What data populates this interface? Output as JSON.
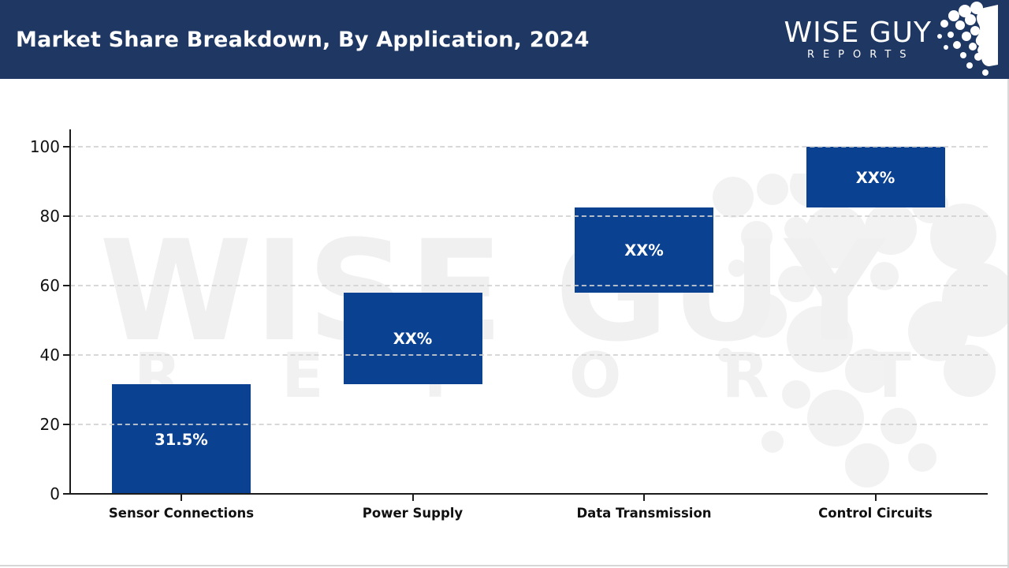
{
  "header": {
    "title": "Market Share Breakdown, By Application, 2024",
    "bg_color": "#1f3763",
    "logo": {
      "line1": "WISE GUY",
      "line2": "REPORTS"
    }
  },
  "watermark": {
    "line1": "WISE GUY",
    "line2": "R E P O R T S"
  },
  "chart_data": {
    "type": "bar",
    "subtype": "waterfall",
    "title": "Market Share Breakdown, By Application, 2024",
    "categories": [
      "Sensor Connections",
      "Power Supply",
      "Data Transmission",
      "Control Circuits"
    ],
    "bars": [
      {
        "category": "Sensor Connections",
        "start": 0,
        "end": 31.5,
        "label": "31.5%"
      },
      {
        "category": "Power Supply",
        "start": 31.5,
        "end": 58,
        "label": "XX%"
      },
      {
        "category": "Data Transmission",
        "start": 58,
        "end": 82.5,
        "label": "XX%"
      },
      {
        "category": "Control Circuits",
        "start": 82.5,
        "end": 100,
        "label": "XX%"
      }
    ],
    "y_ticks": [
      0,
      20,
      40,
      60,
      80,
      100
    ],
    "ylim": [
      0,
      105
    ],
    "xlabel": "",
    "ylabel": "",
    "grid": "horizontal dashed, drawn over bars",
    "legend": "none",
    "bar_color": "#0b4191",
    "bar_label_color": "#ffffff",
    "axis_color": "#1c1c1c",
    "gridline_color": "#d2d2d2"
  }
}
